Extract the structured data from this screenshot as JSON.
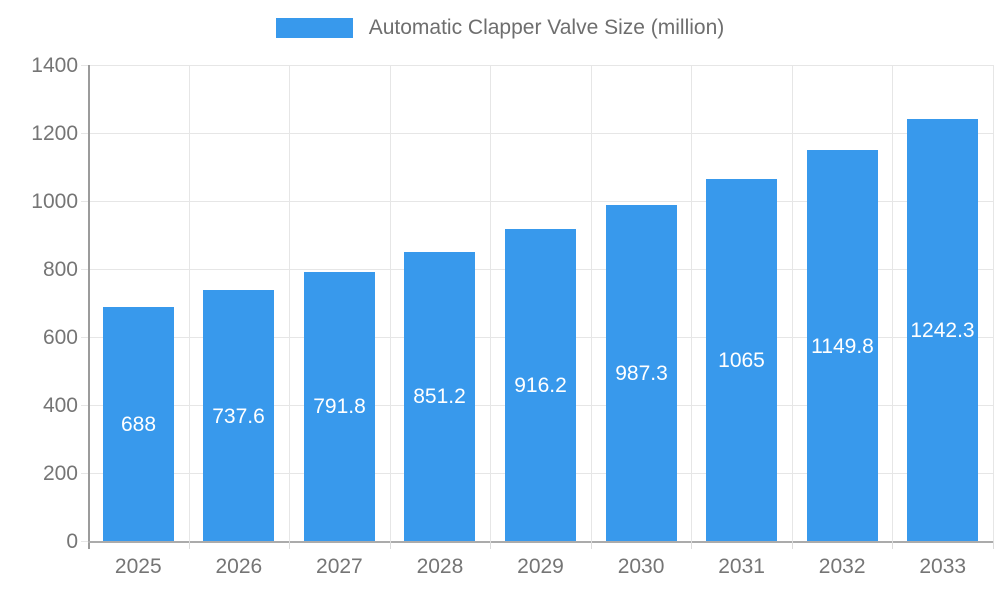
{
  "legend": {
    "label": "Automatic Clapper Valve Size (million)"
  },
  "colors": {
    "bar": "#3899ec",
    "grid": "#e6e6e6",
    "axis": "#9b9b9b",
    "tick_text": "#757575",
    "legend_text": "#6e6e6e",
    "bar_label_text": "#ffffff",
    "background": "#ffffff"
  },
  "chart_data": {
    "type": "bar",
    "title": "Automatic Clapper Valve Size (million)",
    "legend_position": "top-center",
    "categories": [
      "2025",
      "2026",
      "2027",
      "2028",
      "2029",
      "2030",
      "2031",
      "2032",
      "2033"
    ],
    "values": [
      688,
      737.6,
      791.8,
      851.2,
      916.2,
      987.3,
      1065,
      1149.8,
      1242.3
    ],
    "value_labels": [
      "688",
      "737.6",
      "791.8",
      "851.2",
      "916.2",
      "987.3",
      "1065",
      "1149.8",
      "1242.3"
    ],
    "xlabel": "",
    "ylabel": "",
    "ylim": [
      0,
      1400
    ],
    "yticks": [
      0,
      200,
      400,
      600,
      800,
      1000,
      1200,
      1400
    ],
    "grid": true,
    "value_label_placement": "inside-center"
  }
}
